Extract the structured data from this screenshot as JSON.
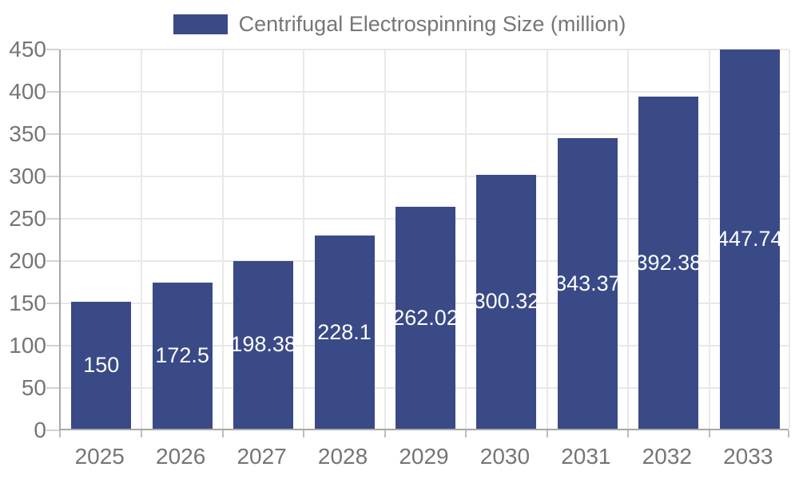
{
  "legend": {
    "label": "Centrifugal Electrospinning Size (million)",
    "swatch_color": "#3a4a87"
  },
  "chart_data": {
    "type": "bar",
    "title": "Centrifugal Electrospinning Size (million)",
    "categories": [
      "2025",
      "2026",
      "2027",
      "2028",
      "2029",
      "2030",
      "2031",
      "2032",
      "2033"
    ],
    "values": [
      150,
      172.5,
      198.38,
      228.1,
      262.02,
      300.32,
      343.37,
      392.38,
      447.74
    ],
    "value_labels": [
      "150",
      "172.5",
      "198.38",
      "228.1",
      "262.02",
      "300.32",
      "343.37",
      "392.38",
      "447.74"
    ],
    "xlabel": "",
    "ylabel": "",
    "ylim": [
      0,
      450
    ],
    "ytick_interval": 50,
    "ytick_labels": [
      "0",
      "50",
      "100",
      "150",
      "200",
      "250",
      "300",
      "350",
      "400",
      "450"
    ],
    "grid": true,
    "legend_position": "top",
    "bar_color": "#3a4a87",
    "value_label_color": "#ffffff",
    "axis_text_color": "#757575",
    "gridline_color": "#e8e8e8",
    "axis_line_color": "#a8a8a8"
  }
}
